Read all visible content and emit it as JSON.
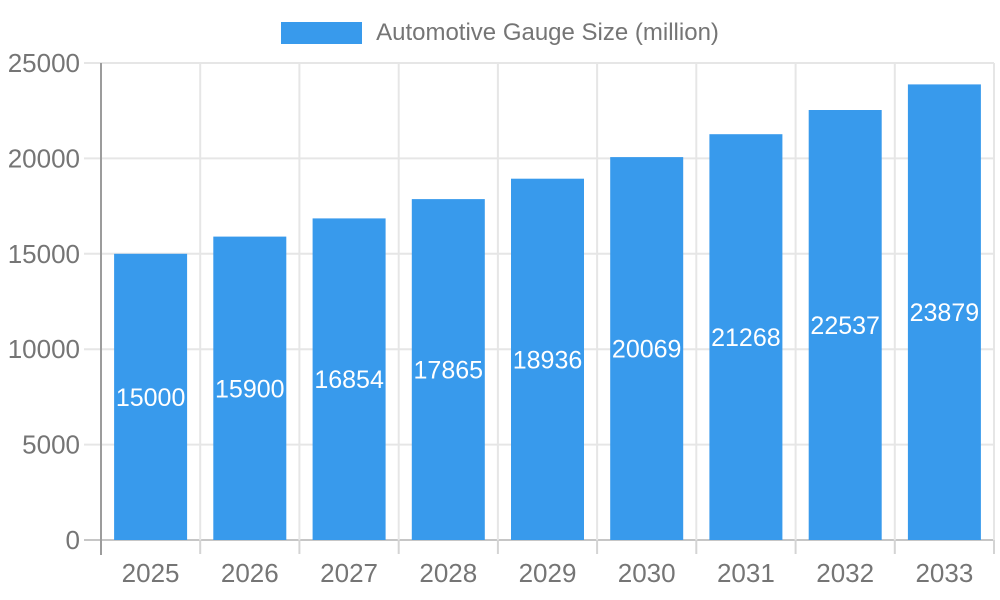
{
  "legend": {
    "label": "Automotive Gauge Size (million)"
  },
  "chart_data": {
    "type": "bar",
    "title": "Automotive Gauge Size (million)",
    "series_name": "Automotive Gauge Size (million)",
    "categories": [
      "2025",
      "2026",
      "2027",
      "2028",
      "2029",
      "2030",
      "2031",
      "2032",
      "2033"
    ],
    "values": [
      15000,
      15900,
      16854,
      17865,
      18936,
      20069,
      21268,
      22537,
      23879
    ],
    "xlabel": "",
    "ylabel": "",
    "ylim": [
      0,
      25000
    ],
    "yticks": [
      0,
      5000,
      10000,
      15000,
      20000,
      25000
    ],
    "grid": true,
    "legend_position": "top-center",
    "colors": {
      "bar": "#389AEC",
      "value_label": "#FFFFFF",
      "axis_text": "#757575",
      "gridline": "#E6E6E6",
      "baseline": "#C6C6C6",
      "y_axis_line": "#9C9C9C",
      "x_tick": "#D4D4D4"
    }
  }
}
